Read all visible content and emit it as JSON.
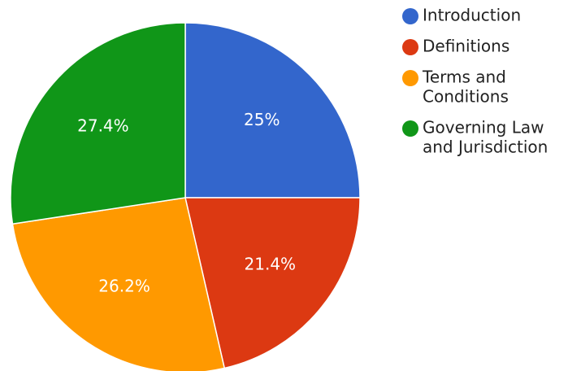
{
  "chart_data": {
    "type": "pie",
    "title": "",
    "legend_position": "right",
    "start_angle_deg": 0,
    "direction": "clockwise",
    "slices": [
      {
        "label": "Introduction",
        "legend_lines": [
          "Introduction"
        ],
        "value": 25,
        "value_label": "25%",
        "color": "#3366cc"
      },
      {
        "label": "Definitions",
        "legend_lines": [
          "Definitions"
        ],
        "value": 21.4,
        "value_label": "21.4%",
        "color": "#dc3912"
      },
      {
        "label": "Terms and Conditions",
        "legend_lines": [
          "Terms and",
          "Conditions"
        ],
        "value": 26.2,
        "value_label": "26.2%",
        "color": "#ff9900"
      },
      {
        "label": "Governing Law and Jurisdiction",
        "legend_lines": [
          "Governing Law",
          "and Jurisdiction"
        ],
        "value": 27.4,
        "value_label": "27.4%",
        "color": "#109618"
      }
    ]
  }
}
